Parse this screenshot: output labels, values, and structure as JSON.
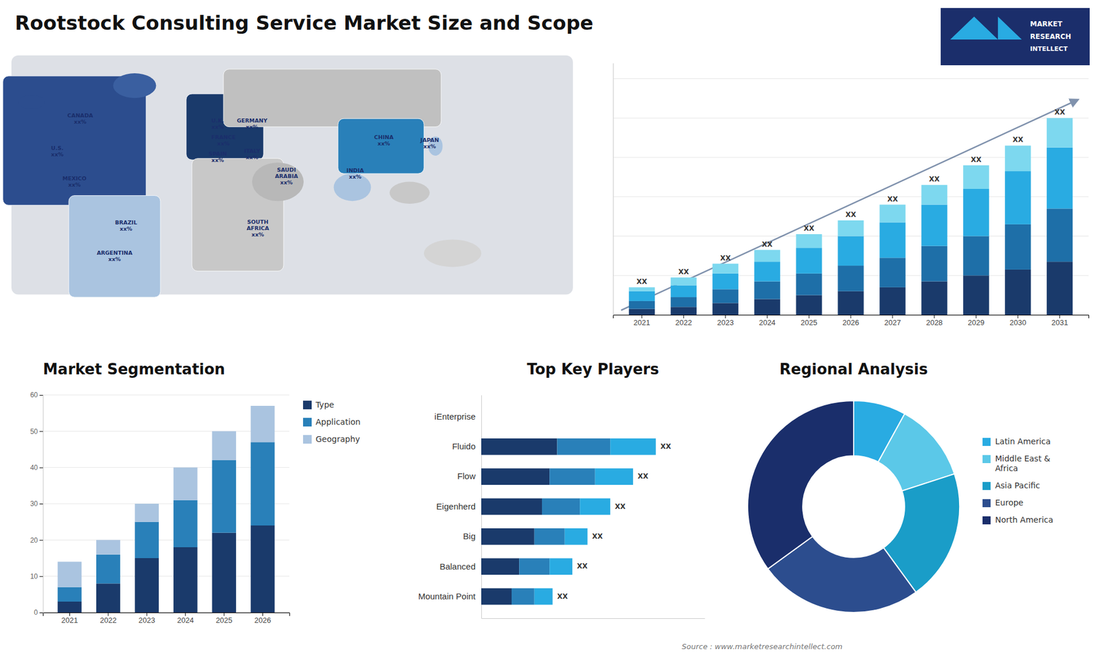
{
  "title": "Rootstock Consulting Service Market Size and Scope",
  "annotations": [
    "Source : www.marketresearchintellect.com",
    "MARKET",
    "RESEARCH",
    "INTELLECT"
  ],
  "chart_data": [
    {
      "type": "map",
      "annotations": [
        "CANADA\nxx%",
        "U.S.\nxx%",
        "MEXICO\nxx%",
        "BRAZIL\nxx%",
        "ARGENTINA\nxx%",
        "U.K.\nxx%",
        "FRANCE\nxx%",
        "SPAIN\nxx%",
        "GERMANY\nxx%",
        "ITALY\nxx%",
        "SAUDI\nARABIA\nxx%",
        "SOUTH\nAFRICA\nxx%",
        "CHINA\nxx%",
        "INDIA\nxx%",
        "JAPAN\nxx%"
      ]
    },
    {
      "type": "bar",
      "stacked": true,
      "categories": [
        "2021",
        "2022",
        "2023",
        "2024",
        "2025",
        "2026",
        "2027",
        "2028",
        "2029",
        "2030",
        "2031"
      ],
      "series": [
        {
          "color": "#1a3a6b",
          "values": [
            3,
            4,
            6,
            8,
            10,
            12,
            14,
            17,
            20,
            23,
            27
          ]
        },
        {
          "color": "#1e6fa8",
          "values": [
            4,
            5,
            7,
            9,
            11,
            13,
            15,
            18,
            20,
            23,
            27
          ]
        },
        {
          "color": "#29abe2",
          "values": [
            5,
            6,
            8,
            10,
            13,
            15,
            18,
            21,
            24,
            27,
            31
          ]
        },
        {
          "color": "#7dd8ef",
          "values": [
            2,
            4,
            5,
            6,
            7,
            8,
            9,
            10,
            12,
            13,
            15
          ]
        }
      ],
      "ylim": [
        0,
        128
      ],
      "yticks": [
        0,
        20,
        40,
        60,
        80,
        100,
        120
      ],
      "grid": true,
      "tick_labels": "x",
      "annotations": [
        "XX",
        "XX",
        "XX",
        "XX",
        "XX",
        "XX",
        "XX",
        "XX",
        "XX",
        "XX",
        "XX"
      ]
    },
    {
      "type": "bar",
      "stacked": true,
      "title": "Market Segmentation",
      "categories": [
        "2021",
        "2022",
        "2023",
        "2024",
        "2025",
        "2026"
      ],
      "series": [
        {
          "name": "Type",
          "color": "#1a3a6b",
          "values": [
            3,
            8,
            15,
            18,
            22,
            24
          ]
        },
        {
          "name": "Application",
          "color": "#2980b9",
          "values": [
            4,
            8,
            10,
            13,
            20,
            23
          ]
        },
        {
          "name": "Geography",
          "color": "#aac4e0",
          "values": [
            7,
            4,
            5,
            9,
            8,
            10
          ]
        }
      ],
      "ylim": [
        0,
        60
      ],
      "yticks": [
        0,
        10,
        20,
        30,
        40,
        50,
        60
      ],
      "grid": true,
      "legend": "right"
    },
    {
      "type": "bar",
      "stacked": true,
      "orientation": "horizontal",
      "title": "Top Key Players",
      "categories": [
        "iEnterprise",
        "Fluido",
        "Flow",
        "Eigenherd",
        "Big",
        "Balanced",
        "Mountain Point"
      ],
      "series": [
        {
          "color": "#1a3a6b",
          "values": [
            0,
            5,
            4.5,
            4,
            3.5,
            2.5,
            2
          ]
        },
        {
          "color": "#2980b9",
          "values": [
            0,
            3.5,
            3.0,
            2.5,
            2.0,
            2.0,
            1.5
          ]
        },
        {
          "color": "#29abe2",
          "values": [
            0,
            3.0,
            2.5,
            2.0,
            1.5,
            1.5,
            1.2
          ]
        }
      ],
      "xlim": [
        0,
        14.72
      ],
      "tick_labels": "y",
      "annotations": [
        "XX",
        "XX",
        "XX",
        "XX",
        "XX",
        "XX"
      ]
    },
    {
      "type": "pie",
      "title": "Regional Analysis",
      "categories": [
        "Latin America",
        "Middle East &\nAfrica",
        "Asia Pacific",
        "Europe",
        "North America"
      ],
      "values": [
        8,
        12,
        20,
        25,
        35
      ],
      "colors": [
        "#29abe2",
        "#5bc8e8",
        "#1a9dc8",
        "#2c4d8e",
        "#1a2e6b"
      ],
      "legend": "right"
    }
  ]
}
